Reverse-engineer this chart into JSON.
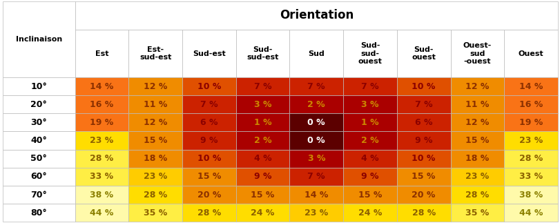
{
  "title": "Orientation",
  "row_header": "Inclinaison",
  "col_headers": [
    "Est",
    "Est-\nsud-est",
    "Sud-est",
    "Sud-\nsud-est",
    "Sud",
    "Sud-\nsud-\nouest",
    "Sud-\nouest",
    "Ouest-\nsud\n-ouest",
    "Ouest"
  ],
  "row_labels": [
    "10°",
    "20°",
    "30°",
    "40°",
    "50°",
    "60°",
    "70°",
    "80°"
  ],
  "values": [
    [
      14,
      12,
      10,
      7,
      7,
      7,
      10,
      12,
      14
    ],
    [
      16,
      11,
      7,
      3,
      2,
      3,
      7,
      11,
      16
    ],
    [
      19,
      12,
      6,
      1,
      0,
      1,
      6,
      12,
      19
    ],
    [
      23,
      15,
      9,
      2,
      0,
      2,
      9,
      15,
      23
    ],
    [
      28,
      18,
      10,
      4,
      3,
      4,
      10,
      18,
      28
    ],
    [
      33,
      23,
      15,
      9,
      7,
      9,
      15,
      23,
      33
    ],
    [
      38,
      28,
      20,
      15,
      14,
      15,
      20,
      28,
      38
    ],
    [
      44,
      35,
      28,
      24,
      23,
      24,
      28,
      35,
      44
    ]
  ],
  "cell_colors": [
    [
      "#F97316",
      "#F08C00",
      "#E05000",
      "#CC2200",
      "#CC2200",
      "#CC2200",
      "#E05000",
      "#F08C00",
      "#F97316"
    ],
    [
      "#F97316",
      "#F08C00",
      "#CC2200",
      "#AA0000",
      "#AA0000",
      "#AA0000",
      "#CC2200",
      "#F08C00",
      "#F97316"
    ],
    [
      "#F97316",
      "#F08C00",
      "#CC2200",
      "#AA0000",
      "#5C0000",
      "#AA0000",
      "#CC2200",
      "#F08C00",
      "#F97316"
    ],
    [
      "#FFDD00",
      "#F08C00",
      "#CC2200",
      "#AA0000",
      "#5C0000",
      "#AA0000",
      "#CC2200",
      "#F08C00",
      "#FFDD00"
    ],
    [
      "#FFEE44",
      "#F08C00",
      "#E05000",
      "#CC2200",
      "#AA0000",
      "#CC2200",
      "#E05000",
      "#F08C00",
      "#FFEE44"
    ],
    [
      "#FFEE44",
      "#FFCC00",
      "#F08C00",
      "#E05000",
      "#CC2200",
      "#E05000",
      "#F08C00",
      "#FFCC00",
      "#FFEE44"
    ],
    [
      "#FFFAAA",
      "#FFDD00",
      "#F08C00",
      "#F08C00",
      "#F08C00",
      "#F08C00",
      "#F08C00",
      "#FFDD00",
      "#FFFAAA"
    ],
    [
      "#FFFAAA",
      "#FFEE44",
      "#FFDD00",
      "#FFDD00",
      "#FFCC00",
      "#FFDD00",
      "#FFDD00",
      "#FFEE44",
      "#FFFAAA"
    ]
  ],
  "text_colors": [
    [
      "#8B3000",
      "#8B3000",
      "#8B0000",
      "#8B0000",
      "#8B0000",
      "#8B0000",
      "#8B0000",
      "#8B3000",
      "#8B3000"
    ],
    [
      "#8B3000",
      "#8B3000",
      "#8B0000",
      "#CC8800",
      "#CC8800",
      "#CC8800",
      "#8B0000",
      "#8B3000",
      "#8B3000"
    ],
    [
      "#8B3000",
      "#8B3000",
      "#8B0000",
      "#CC8800",
      "#FFFFFF",
      "#CC8800",
      "#8B0000",
      "#8B3000",
      "#8B3000"
    ],
    [
      "#8B6000",
      "#8B3000",
      "#8B0000",
      "#CC8800",
      "#FFFFFF",
      "#CC8800",
      "#8B0000",
      "#8B3000",
      "#8B6000"
    ],
    [
      "#8B6000",
      "#8B3000",
      "#8B0000",
      "#8B0000",
      "#CC8800",
      "#8B0000",
      "#8B0000",
      "#8B3000",
      "#8B6000"
    ],
    [
      "#8B6000",
      "#8B6000",
      "#8B3000",
      "#8B0000",
      "#8B0000",
      "#8B0000",
      "#8B3000",
      "#8B6000",
      "#8B6000"
    ],
    [
      "#8B8000",
      "#8B6000",
      "#8B3000",
      "#8B3000",
      "#8B3000",
      "#8B3000",
      "#8B3000",
      "#8B6000",
      "#8B8000"
    ],
    [
      "#8B8000",
      "#8B6000",
      "#8B6000",
      "#8B6000",
      "#8B6000",
      "#8B6000",
      "#8B6000",
      "#8B6000",
      "#8B8000"
    ]
  ],
  "border_color": "#BBBBBB",
  "title_fontsize": 12,
  "header_fontsize": 8,
  "cell_fontsize": 9,
  "row_label_fontsize": 9
}
